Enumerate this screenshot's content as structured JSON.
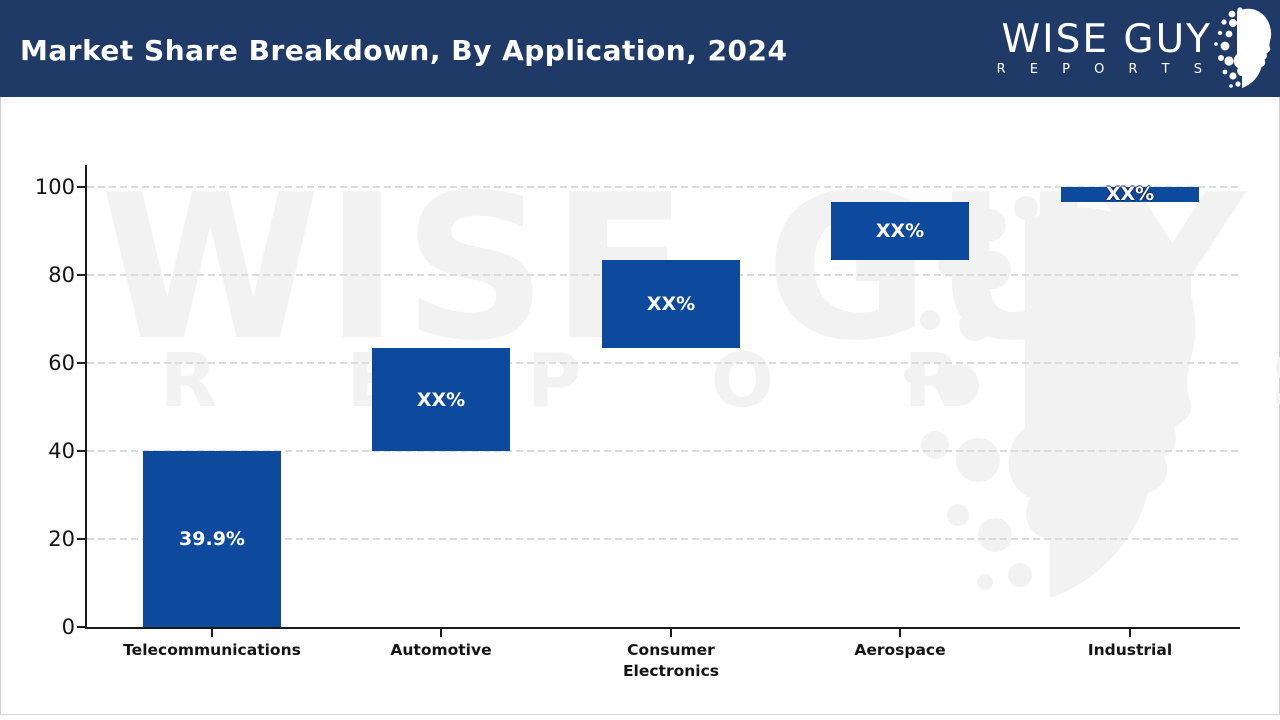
{
  "header": {
    "title": "Market Share Breakdown, By Application, 2024",
    "bg_color": "#203a68",
    "logo": {
      "line1": "WISE GUY",
      "line2": "R E P O R T S"
    }
  },
  "watermark": {
    "line1": "WISE GUY",
    "line2": "R E P O R T S"
  },
  "chart_data": {
    "type": "bar",
    "subtype": "waterfall",
    "title": "Market Share Breakdown, By Application, 2024",
    "ylim": [
      0,
      100
    ],
    "ytick_labels": [
      "0",
      "20",
      "40",
      "60",
      "80",
      "100"
    ],
    "ytick_values": [
      0,
      20,
      40,
      60,
      80,
      100
    ],
    "grid": "horizontal-dashed",
    "legend": "none",
    "bar_color": "#0d4a9e",
    "value_label_color": "#ffffff",
    "categories": [
      "Telecommunications",
      "Automotive",
      "Consumer Electronics",
      "Aerospace",
      "Industrial"
    ],
    "tick_label_lines": [
      [
        "Telecommunications"
      ],
      [
        "Automotive"
      ],
      [
        "Consumer",
        "Electronics"
      ],
      [
        "Aerospace"
      ],
      [
        "Industrial"
      ]
    ],
    "segments": [
      {
        "category": "Telecommunications",
        "start": 0,
        "end": 39.9,
        "value_label": "39.9%"
      },
      {
        "category": "Automotive",
        "start": 39.9,
        "end": 63.4,
        "value_label": "XX%"
      },
      {
        "category": "Consumer Electronics",
        "start": 63.4,
        "end": 83.4,
        "value_label": "XX%"
      },
      {
        "category": "Aerospace",
        "start": 83.4,
        "end": 96.6,
        "value_label": "XX%"
      },
      {
        "category": "Industrial",
        "start": 96.6,
        "end": 100,
        "value_label": "XX%"
      }
    ]
  }
}
